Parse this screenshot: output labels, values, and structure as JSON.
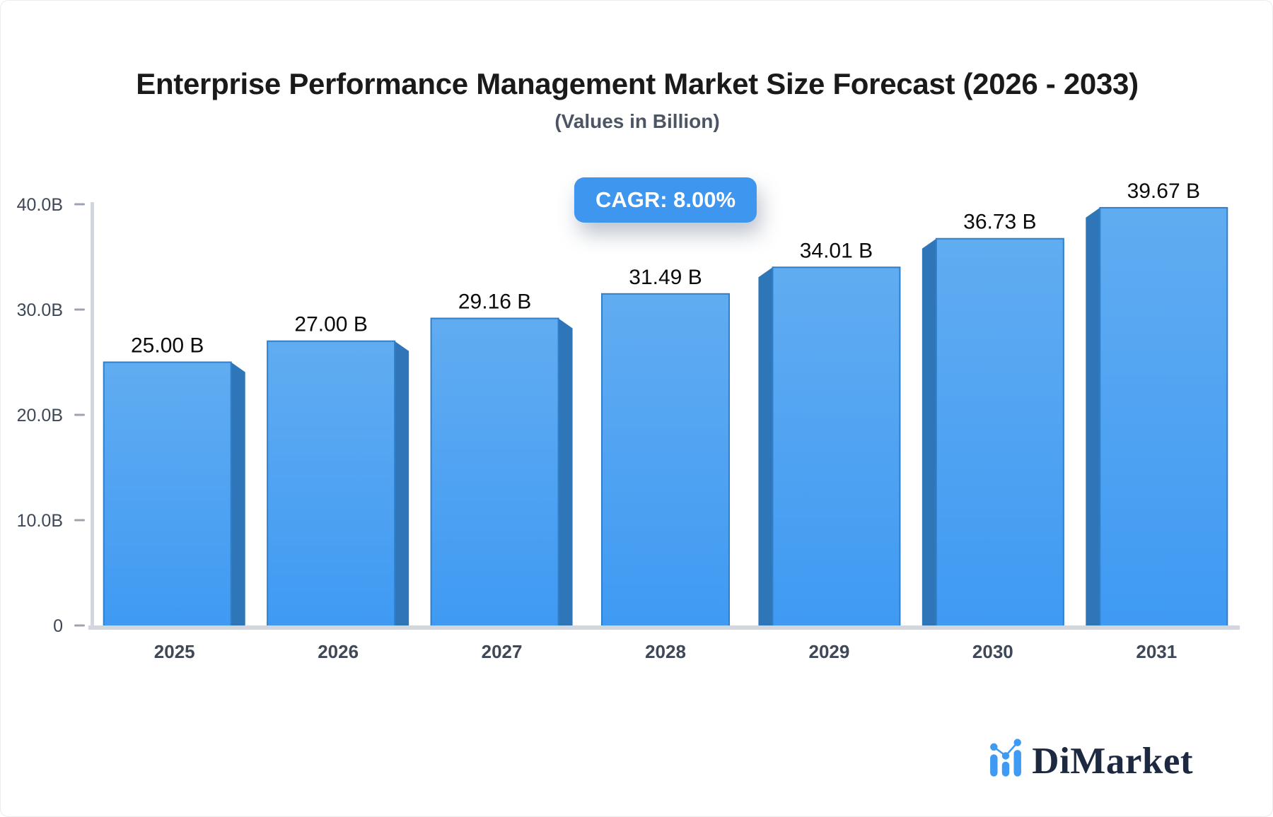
{
  "header": {
    "title": "Enterprise Performance Management Market Size Forecast (2026 - 2033)",
    "subtitle": "(Values in Billion)"
  },
  "badge": {
    "label": "CAGR: 8.00%"
  },
  "chart_data": {
    "type": "bar",
    "title": "Enterprise Performance Management Market Size Forecast (2026 - 2033)",
    "subtitle": "(Values in Billion)",
    "categories": [
      "2025",
      "2026",
      "2027",
      "2028",
      "2029",
      "2030",
      "2031"
    ],
    "values": [
      25.0,
      27.0,
      29.16,
      31.49,
      34.01,
      36.73,
      39.67
    ],
    "value_labels": [
      "25.00 B",
      "27.00 B",
      "29.16 B",
      "31.49 B",
      "34.01 B",
      "36.73 B",
      "39.67 B"
    ],
    "annotation": "CAGR: 8.00%",
    "ylim": [
      0,
      40
    ],
    "yticks": [
      {
        "value": 0,
        "label": "0"
      },
      {
        "value": 10,
        "label": "10.0B"
      },
      {
        "value": 20,
        "label": "20.0B"
      },
      {
        "value": 30,
        "label": "30.0B"
      },
      {
        "value": 40,
        "label": "40.0B"
      }
    ],
    "grid": false,
    "legend": false,
    "bar_style": "3d-perspective-toward-center"
  },
  "footer": {
    "brand": "DiMarket",
    "logo_icon": "mini-bar-chart-trend-icon"
  },
  "colors": {
    "bar_fill_top": "#61acf1",
    "bar_fill_bottom": "#3f9af3",
    "bar_stroke": "#2f7fcb",
    "bar_side": "#2e76b8",
    "axis_line": "#d3d6dd",
    "tick_dash": "#9ca4b1",
    "axis_text": "#3e4857",
    "value_text": "#0b0b0b",
    "badge_bg": "#3e96ef",
    "badge_text": "#ffffff",
    "brand_navy": "#1c2940",
    "brand_blue": "#3e9af3"
  }
}
